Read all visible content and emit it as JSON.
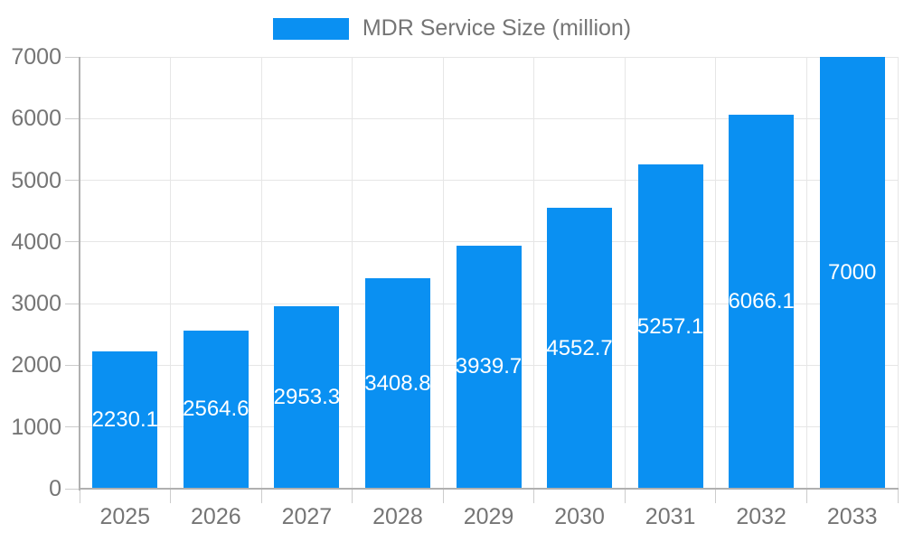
{
  "legend": {
    "label": "MDR Service Size (million)"
  },
  "chart_data": {
    "type": "bar",
    "title": "MDR Service Size (million)",
    "categories": [
      "2025",
      "2026",
      "2027",
      "2028",
      "2029",
      "2030",
      "2031",
      "2032",
      "2033"
    ],
    "values": [
      2230.1,
      2564.6,
      2953.3,
      3408.8,
      3939.7,
      4552.7,
      5257.1,
      6066.1,
      7000
    ],
    "value_labels": [
      "2230.1",
      "2564.6",
      "2953.3",
      "3408.8",
      "3939.7",
      "4552.7",
      "5257.1",
      "6066.1",
      "7000"
    ],
    "xlabel": "",
    "ylabel": "",
    "ylim": [
      0,
      7000
    ],
    "ytick_step": 1000,
    "yticks": [
      "0",
      "1000",
      "2000",
      "3000",
      "4000",
      "5000",
      "6000",
      "7000"
    ],
    "grid": true,
    "legend_position": "top-center",
    "bar_color": "#0a90f2",
    "bar_label_color": "#ffffff",
    "axis_text_color": "#757575",
    "grid_color": "#e6e6e6",
    "axis_line_color": "#b0b0b0",
    "tick_color": "#cccccc"
  }
}
